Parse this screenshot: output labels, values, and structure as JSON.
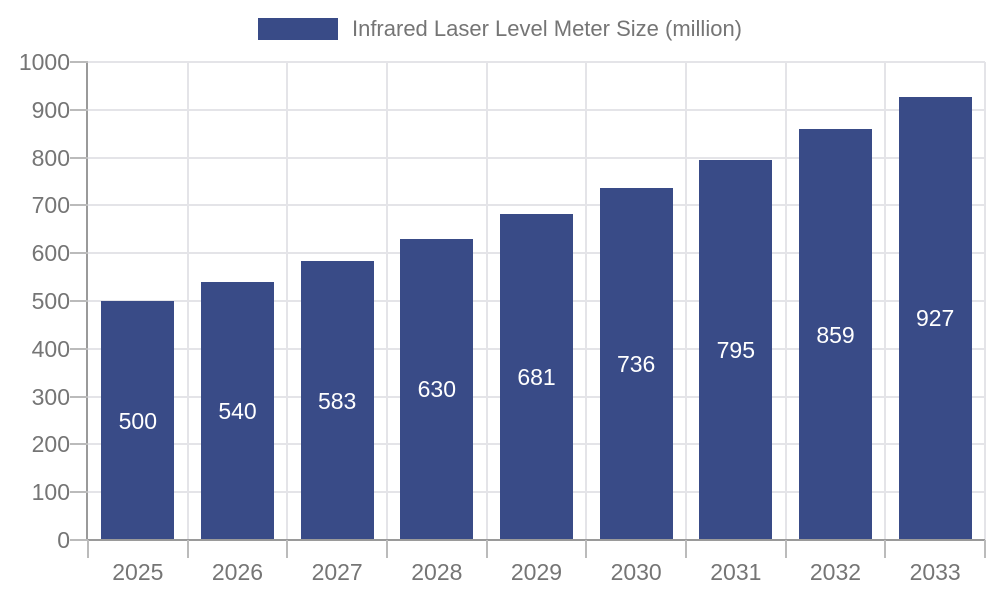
{
  "chart_data": {
    "type": "bar",
    "title": "Infrared Laser Level Meter Size (million)",
    "legend": [
      "Infrared Laser Level Meter Size (million)"
    ],
    "legend_position": "top",
    "categories": [
      "2025",
      "2026",
      "2027",
      "2028",
      "2029",
      "2030",
      "2031",
      "2032",
      "2033"
    ],
    "values": [
      500,
      540,
      583,
      630,
      681,
      736,
      795,
      859,
      927
    ],
    "xlabel": "",
    "ylabel": "",
    "ylim": [
      0,
      1000
    ],
    "ytick_step": 100,
    "grid": true,
    "bar_labels_visible": true
  },
  "colors": {
    "bar": "#394B87",
    "bar_label": "#FFFFFF",
    "axis_text": "#757575",
    "axis_line": "#9A9A9A",
    "tick_line": "#BBBBBB",
    "gridline": "#E4E4E8",
    "background": "#FFFFFF"
  }
}
